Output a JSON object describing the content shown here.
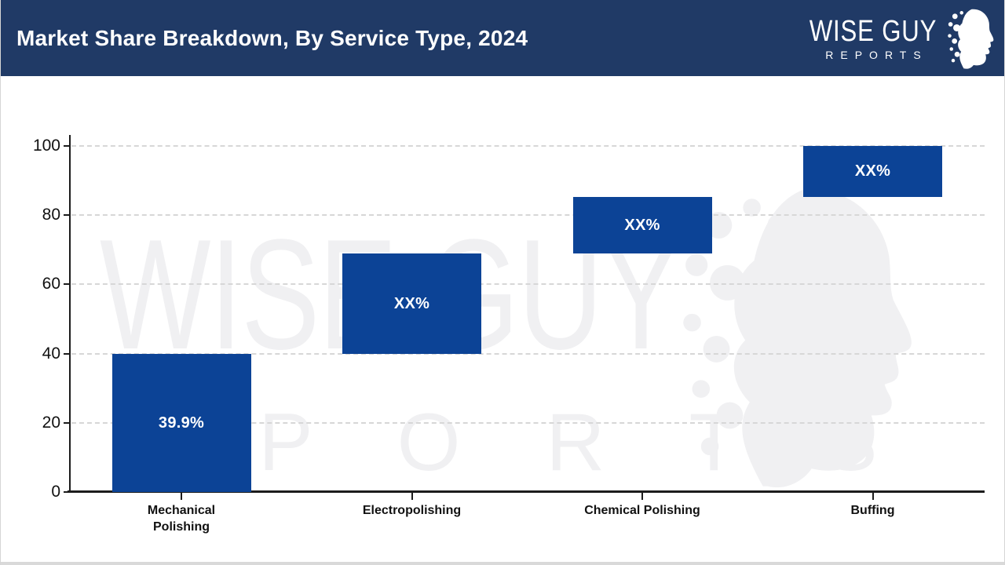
{
  "header": {
    "title": "Market Share Breakdown, By Service Type, 2024",
    "background_color": "#203A66",
    "logo": {
      "line1": "WISE GUY",
      "line2": "REPORTS"
    }
  },
  "watermark": {
    "line1": "WISE GUY",
    "line2": "REPORTS",
    "color": "#f0f0f2"
  },
  "chart_data": {
    "type": "bar",
    "subtype": "waterfall",
    "title": "Market Share Breakdown, By Service Type, 2024",
    "categories": [
      "Mechanical Polishing",
      "Electropolishing",
      "Chemical Polishing",
      "Buffing"
    ],
    "xtick_labels": [
      "Mechanical\nPolishing",
      "Electropolishing",
      "Chemical Polishing",
      "Buffing"
    ],
    "segments": [
      {
        "category": "Mechanical Polishing",
        "start": 0,
        "end": 39.9,
        "value_label": "39.9%"
      },
      {
        "category": "Electropolishing",
        "start": 39.9,
        "end": 68.9,
        "value_label": "XX%"
      },
      {
        "category": "Chemical Polishing",
        "start": 68.9,
        "end": 85.2,
        "value_label": "XX%"
      },
      {
        "category": "Buffing",
        "start": 85.2,
        "end": 100,
        "value_label": "XX%"
      }
    ],
    "ylim": [
      0,
      100
    ],
    "yticks": [
      0,
      20,
      40,
      60,
      80,
      100
    ],
    "grid": "horizontal-dashed",
    "legend": "none",
    "bar_color": "#0C4396"
  }
}
